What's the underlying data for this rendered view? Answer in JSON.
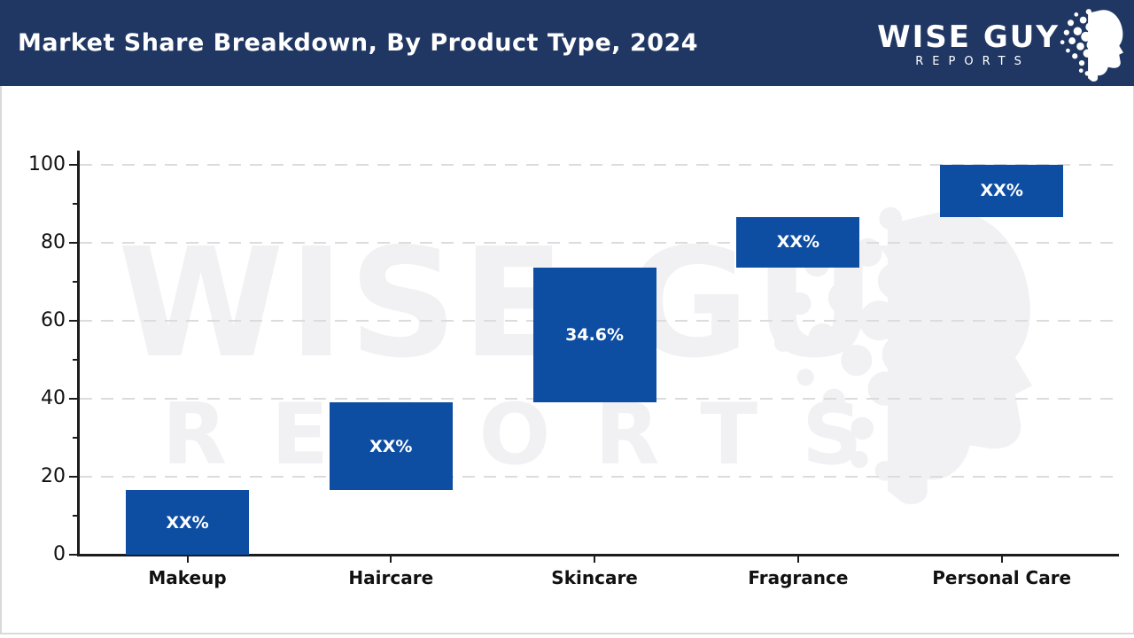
{
  "header": {
    "title": "Market Share Breakdown, By Product Type, 2024",
    "logo_line1": "WISE GUY",
    "logo_line2": "REPORTS"
  },
  "watermark": {
    "line1": "WISE GUY",
    "line2": "REPORTS"
  },
  "colors": {
    "header_bg": "#213763",
    "bar_blue": "#0d4da2",
    "watermark_gray": "#f1f1f3",
    "gridline_gray": "#dcdcdc",
    "axis_black": "#1c1c1c"
  },
  "chart_data": {
    "type": "bar",
    "subtype": "waterfall-stacked",
    "title": "Market Share Breakdown, By Product Type, 2024",
    "categories": [
      "Makeup",
      "Haircare",
      "Skincare",
      "Fragrance",
      "Personal Care"
    ],
    "segments": [
      {
        "category": "Makeup",
        "start": 0,
        "end": 16.5,
        "value_label": "XX%"
      },
      {
        "category": "Haircare",
        "start": 16.5,
        "end": 39.0,
        "value_label": "XX%"
      },
      {
        "category": "Skincare",
        "start": 39.0,
        "end": 73.6,
        "value_label": "34.6%"
      },
      {
        "category": "Fragrance",
        "start": 73.6,
        "end": 86.5,
        "value_label": "XX%"
      },
      {
        "category": "Personal Care",
        "start": 86.5,
        "end": 100,
        "value_label": "XX%"
      }
    ],
    "yticks": [
      0,
      20,
      40,
      60,
      80,
      100
    ],
    "minor_yticks": [
      10,
      30,
      50,
      70,
      90
    ],
    "ylim": [
      0,
      104
    ],
    "xlabel": "",
    "ylabel": "",
    "grid": "horizontal-dashed",
    "legend": "none",
    "bar_color": "#0d4da2"
  }
}
